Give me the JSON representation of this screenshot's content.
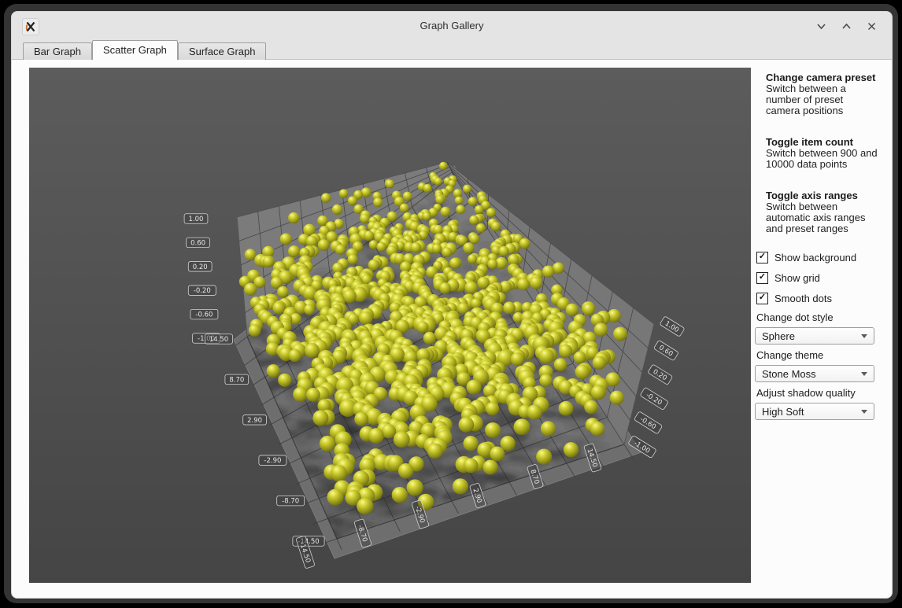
{
  "window": {
    "title": "Graph Gallery"
  },
  "icons": {
    "app": "x11-logo",
    "minimize": "chevron-down",
    "maximize": "chevron-up",
    "close": "x",
    "check": "✓"
  },
  "tabs": [
    {
      "label": "Bar Graph",
      "active": false
    },
    {
      "label": "Scatter Graph",
      "active": true
    },
    {
      "label": "Surface Graph",
      "active": false
    }
  ],
  "panel": {
    "sections": [
      {
        "title": "Change camera preset",
        "description": "Switch between a\nnumber of preset\ncamera positions"
      },
      {
        "title": "Toggle item count",
        "description": "Switch between 900 and\n10000 data points"
      },
      {
        "title": "Toggle axis ranges",
        "description": "Switch between\nautomatic axis ranges\nand preset ranges"
      }
    ],
    "checkboxes": [
      {
        "label": "Show background",
        "checked": true
      },
      {
        "label": "Show grid",
        "checked": true
      },
      {
        "label": "Smooth dots",
        "checked": true
      }
    ],
    "dropdowns": [
      {
        "label": "Change dot style",
        "value": "Sphere"
      },
      {
        "label": "Change theme",
        "value": "Stone Moss"
      },
      {
        "label": "Adjust shadow quality",
        "value": "High Soft"
      }
    ]
  },
  "chart": {
    "type": "scatter3d",
    "dot_style": "sphere",
    "point_count": 900,
    "dot_color": "#b8b820",
    "background_color": "#4f4f4f",
    "floor_color": "#737373",
    "axes": {
      "y_left_ticks": [
        "1.00",
        "0.60",
        "0.20",
        "-0.20",
        "-0.60",
        "-1.00"
      ],
      "y_right_ticks": [
        "1.00",
        "0.60",
        "0.20",
        "-0.20",
        "-0.60",
        "-1.00"
      ],
      "x_ticks": [
        "14.50",
        "8.70",
        "2.90",
        "-2.90",
        "-8.70",
        "-14.50"
      ],
      "z_ticks": [
        "-14.50",
        "-8.70",
        "-2.90",
        "2.90",
        "8.70",
        "14.50"
      ],
      "y_range": [
        -1.0,
        1.0
      ],
      "x_range": [
        -14.5,
        14.5
      ],
      "z_range": [
        -14.5,
        14.5
      ]
    }
  }
}
